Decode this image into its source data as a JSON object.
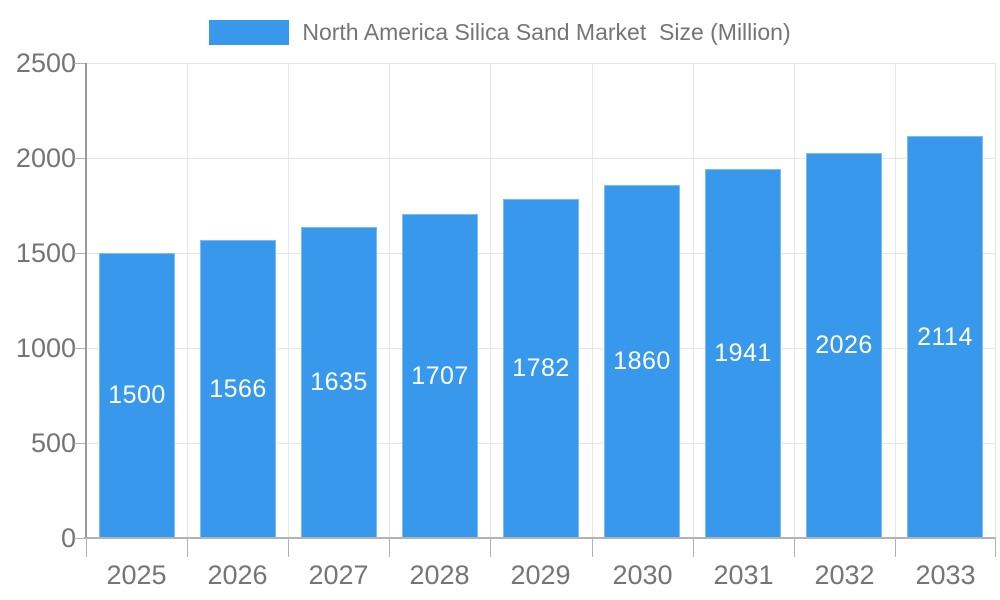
{
  "chart_data": {
    "type": "bar",
    "title": "North America Silica Sand Market  Size (Million)",
    "legend_position": "top",
    "categories": [
      "2025",
      "2026",
      "2027",
      "2028",
      "2029",
      "2030",
      "2031",
      "2032",
      "2033"
    ],
    "values": [
      1500,
      1566,
      1635,
      1707,
      1782,
      1860,
      1941,
      2026,
      2114
    ],
    "series": [
      {
        "name": "North America Silica Sand Market  Size (Million)",
        "values": [
          1500,
          1566,
          1635,
          1707,
          1782,
          1860,
          1941,
          2026,
          2114
        ]
      }
    ],
    "xlabel": "",
    "ylabel": "",
    "ylim": [
      0,
      2500
    ],
    "yticks": [
      0,
      500,
      1000,
      1500,
      2000,
      2500
    ],
    "grid": "on",
    "bar_value_labels": "inside-center"
  },
  "colors": {
    "bar": "#3899ec",
    "bar_label": "#ffffff",
    "axis_text": "#757575",
    "legend_text": "#757575",
    "grid_line": "#e6e6e6",
    "x_axis_line": "#b3b3b3",
    "y_axis_line": "#999999",
    "tick_mark": "#b3b3b3"
  }
}
